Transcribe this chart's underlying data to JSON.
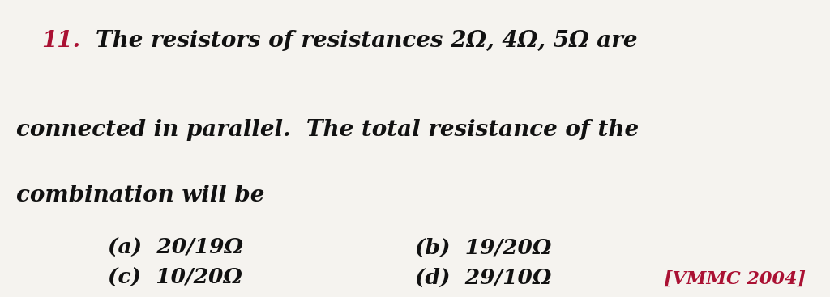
{
  "background_color": "#f5f3ef",
  "question_number": "11.",
  "question_number_color": "#aa1133",
  "question_text_line1": "The resistors of resistances 2Ω, 4Ω, 5Ω are",
  "question_text_line2": "connected in parallel.  The total resistance of the",
  "question_text_line3": "combination will be",
  "option_a": "(a)  20/19Ω",
  "option_b": "(b)  19/20Ω",
  "option_c": "(c)  10/20Ω",
  "option_d": "(d)  29/10Ω",
  "source": "[VMMC 2004]",
  "source_color": "#aa1133",
  "text_color": "#111111",
  "font_size_main": 20,
  "font_size_options": 19,
  "font_size_source": 16
}
